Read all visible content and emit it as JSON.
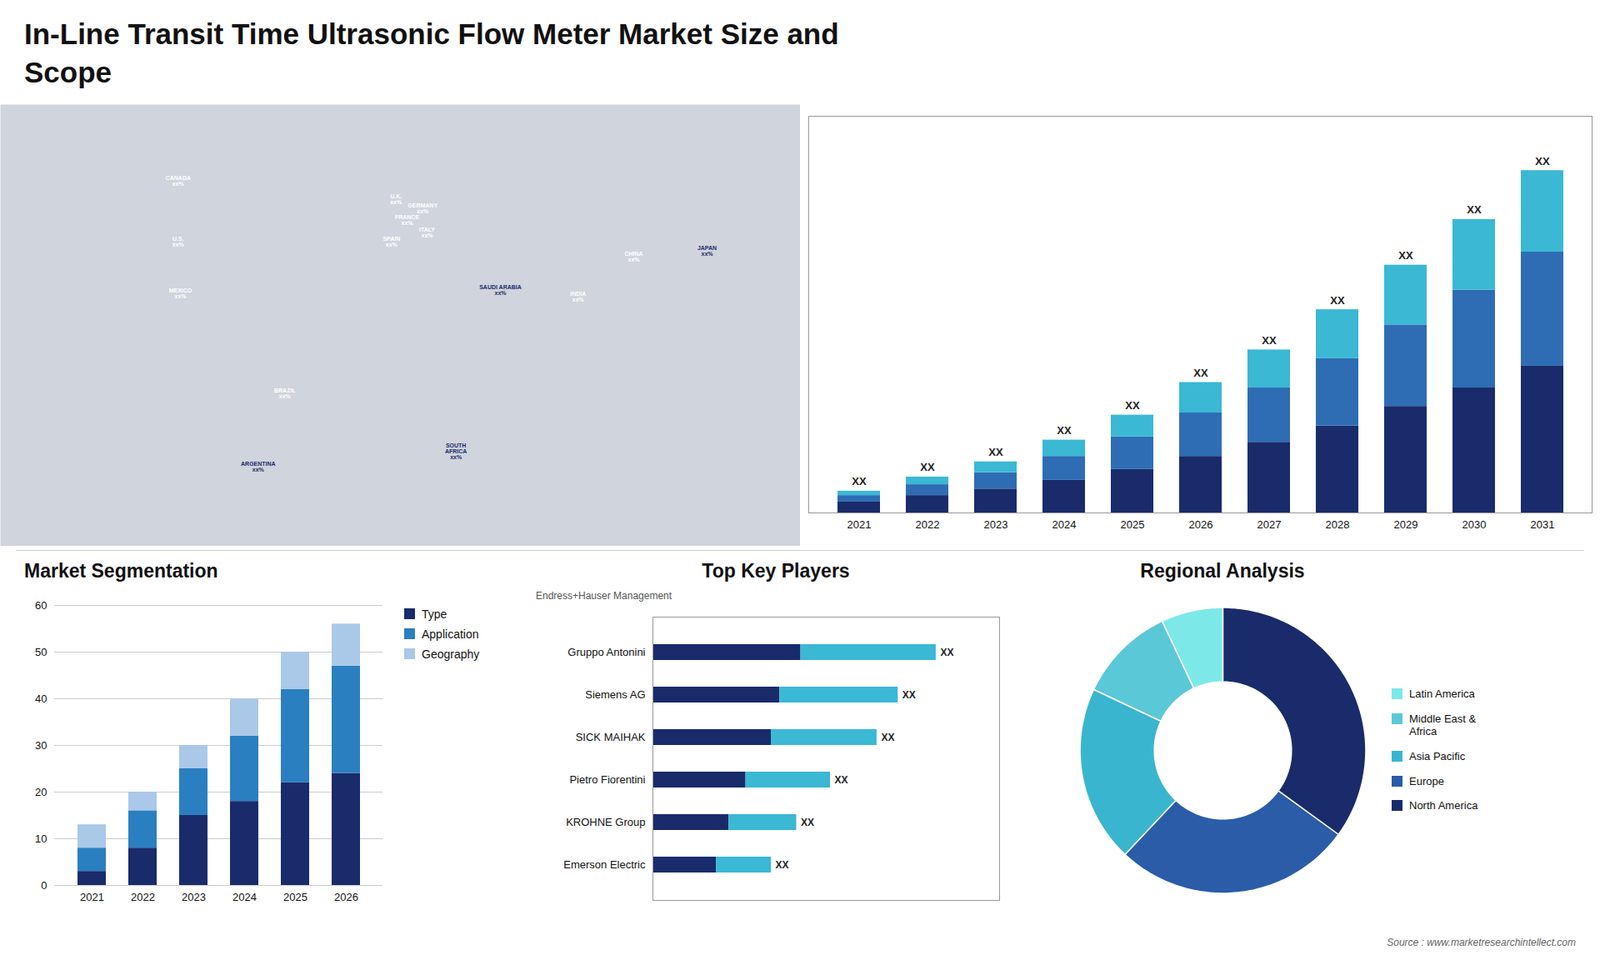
{
  "chart_data": [
    {
      "type": "bar",
      "title": "In-Line Transit Time Ultrasonic Flow Meter Market Size and\nScope",
      "caption": "Source : www.marketresearchintellect.com",
      "categories": [
        "2021",
        "2022",
        "2023",
        "2024",
        "2025",
        "2026",
        "2027",
        "2028",
        "2029",
        "2030",
        "2031"
      ],
      "series": [
        {
          "color": "#1a2b6b",
          "values": [
            1.0,
            1.6,
            2.2,
            3.0,
            4.0,
            5.2,
            6.5,
            8.0,
            9.8,
            11.5,
            13.5
          ]
        },
        {
          "color": "#2e6db4",
          "values": [
            0.6,
            1.0,
            1.5,
            2.2,
            3.0,
            4.0,
            5.0,
            6.2,
            7.5,
            9.0,
            10.5
          ]
        },
        {
          "color": "#3ab8d4",
          "values": [
            0.4,
            0.7,
            1.0,
            1.5,
            2.0,
            2.8,
            3.5,
            4.5,
            5.5,
            6.5,
            7.5
          ]
        }
      ],
      "stacked": true,
      "ylim": [
        0,
        36.5
      ],
      "tick_labels": "x",
      "annotations": [
        {
          "text": "XX",
          "x": "2021"
        },
        {
          "text": "XX",
          "x": "2022"
        },
        {
          "text": "XX",
          "x": "2023"
        },
        {
          "text": "XX",
          "x": "2024"
        },
        {
          "text": "XX",
          "x": "2025"
        },
        {
          "text": "XX",
          "x": "2026"
        },
        {
          "text": "XX",
          "x": "2027"
        },
        {
          "text": "XX",
          "x": "2028"
        },
        {
          "text": "XX",
          "x": "2029"
        },
        {
          "text": "XX",
          "x": "2030"
        },
        {
          "text": "XX",
          "x": "2031"
        }
      ]
    },
    {
      "type": "map",
      "color": "#d0d4dc",
      "xlim": [
        -180,
        180
      ],
      "ylim": [
        -60,
        85
      ],
      "tick_labels": false,
      "annotations": [
        {
          "text": "CANADA\nxx%",
          "x": -100,
          "y": 60,
          "color": "#ffffff"
        },
        {
          "text": "U.S.\nxx%",
          "x": -100,
          "y": 40,
          "color": "#ffffff"
        },
        {
          "text": "MEXICO\nxx%",
          "x": -99,
          "y": 23,
          "color": "#ffffff"
        },
        {
          "text": "BRAZIL\nxx%",
          "x": -52,
          "y": -10,
          "color": "#ffffff"
        },
        {
          "text": "ARGENTINA\nxx%",
          "x": -64,
          "y": -34,
          "color": "#1a2b6b"
        },
        {
          "text": "U.K.\nxx%",
          "x": -2,
          "y": 54,
          "color": "#ffffff"
        },
        {
          "text": "FRANCE\nxx%",
          "x": 3,
          "y": 47,
          "color": "#ffffff"
        },
        {
          "text": "SPAIN\nxx%",
          "x": -4,
          "y": 40,
          "color": "#ffffff"
        },
        {
          "text": "GERMANY\nxx%",
          "x": 10,
          "y": 51,
          "color": "#ffffff"
        },
        {
          "text": "ITALY\nxx%",
          "x": 12,
          "y": 43,
          "color": "#ffffff"
        },
        {
          "text": "SAUDI ARABIA\nxx%",
          "x": 45,
          "y": 24,
          "color": "#1a2b6b"
        },
        {
          "text": "SOUTH\nAFRICA\nxx%",
          "x": 25,
          "y": -29,
          "color": "#1a2b6b"
        },
        {
          "text": "CHINA\nxx%",
          "x": 105,
          "y": 35,
          "color": "#ffffff"
        },
        {
          "text": "INDIA\nxx%",
          "x": 80,
          "y": 22,
          "color": "#ffffff"
        },
        {
          "text": "JAPAN\nxx%",
          "x": 138,
          "y": 37,
          "color": "#1a2b6b"
        }
      ]
    },
    {
      "type": "bar",
      "title": "Market Segmentation",
      "categories": [
        "2021",
        "2022",
        "2023",
        "2024",
        "2025",
        "2026"
      ],
      "series": [
        {
          "name": "Type",
          "color": "#1a2b6b",
          "values": [
            3,
            8,
            15,
            18,
            22,
            24
          ]
        },
        {
          "name": "Application",
          "color": "#2a7fc1",
          "values": [
            5,
            8,
            10,
            14,
            20,
            23
          ]
        },
        {
          "name": "Geography",
          "color": "#aac8e8",
          "values": [
            5,
            4,
            5,
            8,
            8,
            9
          ]
        }
      ],
      "stacked": true,
      "ylim": [
        0,
        60
      ],
      "yticks": [
        0,
        10,
        20,
        30,
        40,
        50,
        60
      ],
      "grid": true,
      "legend": "right"
    },
    {
      "type": "bar",
      "orientation": "horizontal",
      "title": "Top Key Players",
      "subtitle": "Endress+Hauser Management",
      "categories": [
        "Gruppo Antonini",
        "Siemens AG",
        "SICK MAIHAK",
        "Pietro Fiorentini",
        "KROHNE Group",
        "Emerson Electric"
      ],
      "series": [
        {
          "color": "#1a2b6b",
          "values": [
            3.5,
            3.0,
            2.8,
            2.2,
            1.8,
            1.5
          ]
        },
        {
          "color": "#3ab8d4",
          "values": [
            3.2,
            2.8,
            2.5,
            2.0,
            1.6,
            1.3
          ]
        }
      ],
      "stacked": true,
      "xlim": [
        0,
        8.2
      ],
      "tick_labels": "y",
      "annotations": [
        {
          "text": "XX",
          "y": "Gruppo Antonini"
        },
        {
          "text": "XX",
          "y": "Siemens AG"
        },
        {
          "text": "XX",
          "y": "SICK MAIHAK"
        },
        {
          "text": "XX",
          "y": "Pietro Fiorentini"
        },
        {
          "text": "XX",
          "y": "KROHNE Group"
        },
        {
          "text": "XX",
          "y": "Emerson Electric"
        }
      ]
    },
    {
      "type": "donut",
      "title": "Regional Analysis",
      "categories": [
        "Latin America",
        "Middle East &\nAfrica",
        "Asia Pacific",
        "Europe",
        "North America"
      ],
      "values": [
        7,
        11,
        20,
        27,
        35
      ],
      "colors": [
        "#7de8e8",
        "#5bc8d8",
        "#3ab5d0",
        "#2a5ca8",
        "#1a2b6b"
      ],
      "legend": "right"
    }
  ]
}
